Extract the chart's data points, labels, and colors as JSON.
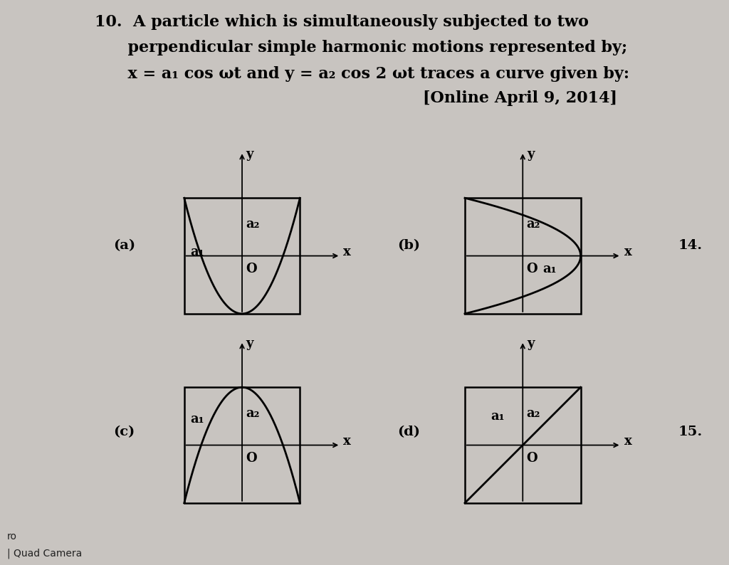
{
  "bg_color": "#c8c4c0",
  "plot_bg": "#c8c4c0",
  "text_color": "#000000",
  "curve_color": "#000000",
  "box_color": "#000000",
  "axis_color": "#000000",
  "font_size_header": 16,
  "font_size_bold_header": 17,
  "font_size_label": 14,
  "font_size_annotation": 13,
  "font_size_axis": 13,
  "font_size_small": 10,
  "header1": "10.  A particle which is simultaneously subjected to two",
  "header2": "      perpendicular simple harmonic motions represented by;",
  "header3": "      x = a₁ cos ωt and y = a₂ cos 2 ωt traces a curve given by:",
  "header4": "[Online April 9, 2014]",
  "label_a": "(a)",
  "label_b": "(b)",
  "label_c": "(c)",
  "label_d": "(d)",
  "label_14": "14.",
  "label_15": "15.",
  "footer1": "ro",
  "footer2": "| Quad Camera"
}
